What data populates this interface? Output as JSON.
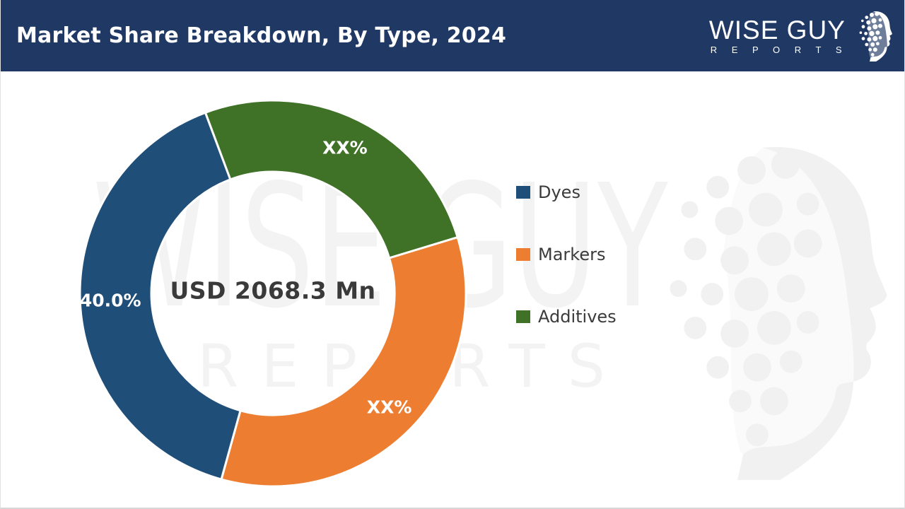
{
  "header": {
    "title": "Market Share Breakdown, By Type, 2024",
    "logo": {
      "line1": "WISE GUY",
      "line2": "R E P O R T S"
    },
    "bg_color": "#1F3864"
  },
  "watermark": {
    "line1": "WISE GUY",
    "line2": "REPORTS"
  },
  "chart_data": {
    "type": "pie",
    "donut": true,
    "inner_radius_ratio": 0.625,
    "title": "Market Share Breakdown, By Type, 2024",
    "center_label": "USD 2068.3 Mn",
    "legend_position": "right",
    "start_angle_deg": -20.5,
    "draw_order": [
      2,
      1,
      0
    ],
    "slices": [
      {
        "name": "Dyes",
        "value_pct": 40,
        "display_pct": "40.0%",
        "color": "#1F4E79"
      },
      {
        "name": "Markers",
        "value_pct": 34,
        "display_pct": "XX%",
        "color": "#ED7D31"
      },
      {
        "name": "Additives",
        "value_pct": 26,
        "display_pct": "XX%",
        "color": "#3F7126"
      }
    ]
  }
}
